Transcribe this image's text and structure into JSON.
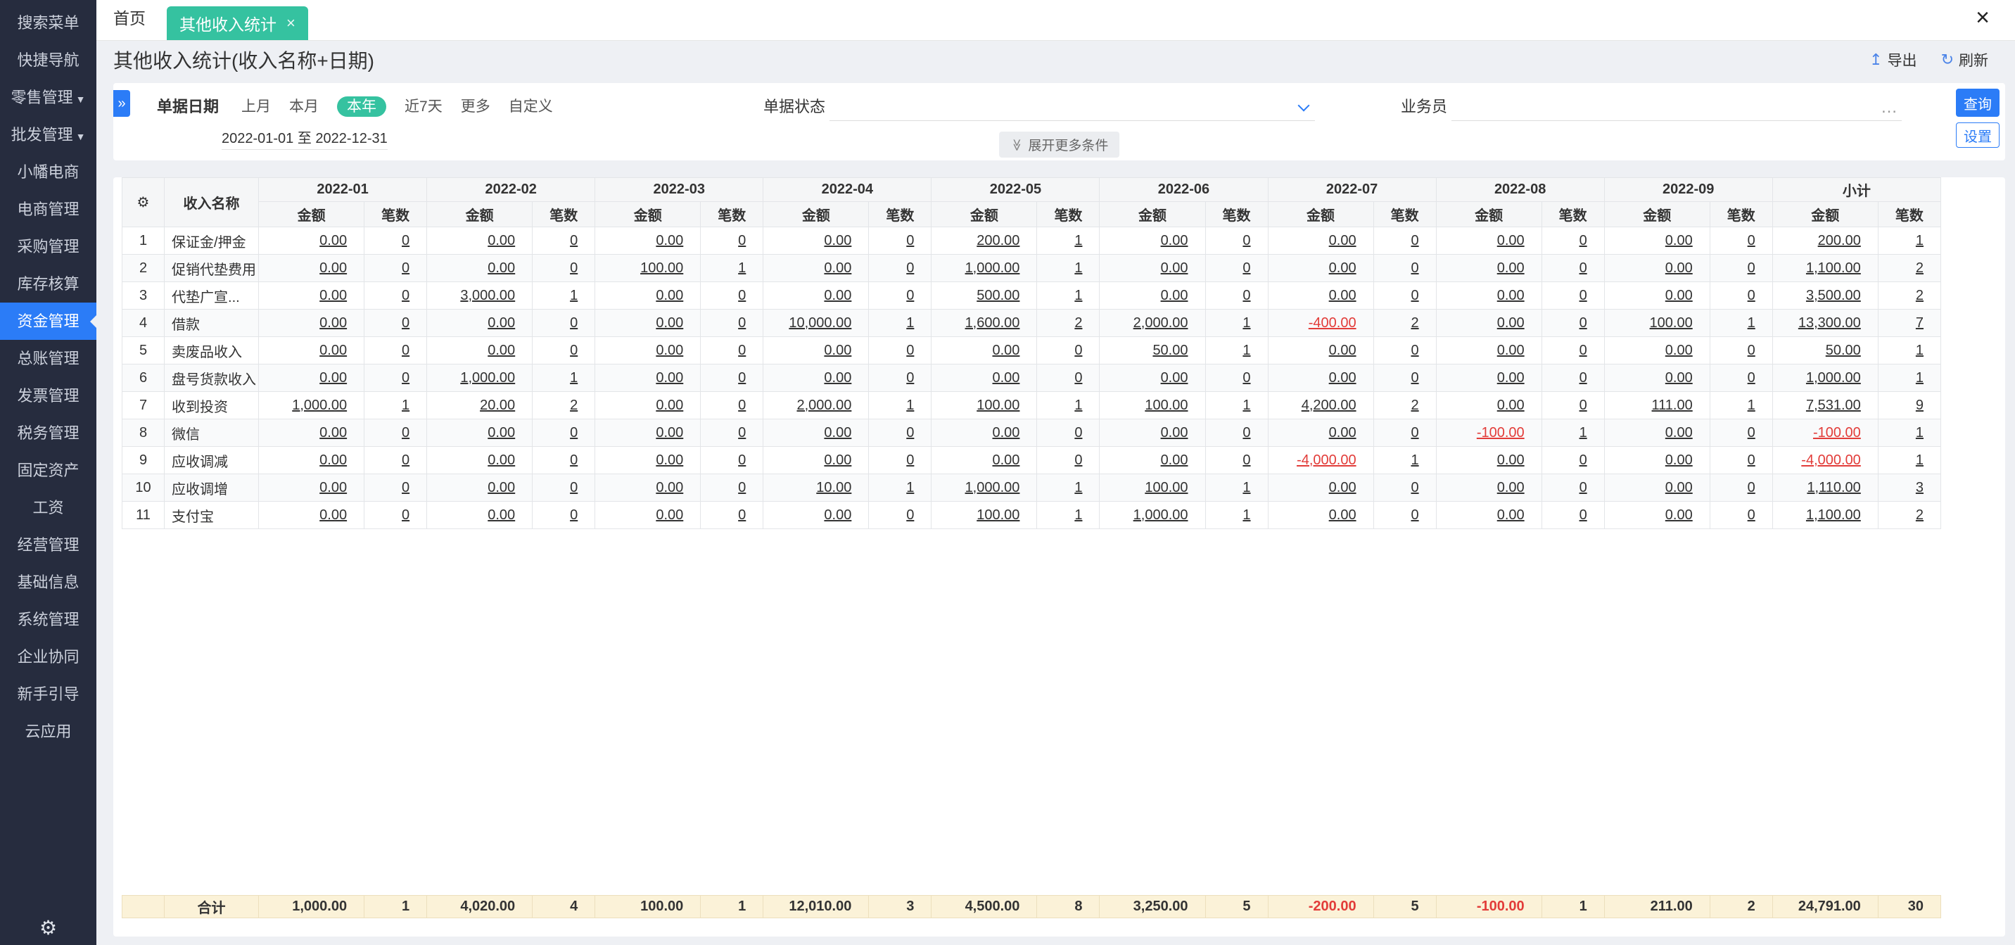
{
  "colors": {
    "accent": "#2b7cf7",
    "tab_green": "#35c2a0",
    "negative": "#e23c39",
    "footer_bg": "#fbf2d8",
    "sidebar_bg": "#262c3e"
  },
  "sidebar": {
    "gear_icon": "⚙",
    "items": [
      {
        "label": "搜索菜单",
        "arrow": false,
        "selected": false
      },
      {
        "label": "快捷导航",
        "arrow": false,
        "selected": false
      },
      {
        "label": "零售管理",
        "arrow": true,
        "selected": false
      },
      {
        "label": "批发管理",
        "arrow": true,
        "selected": false
      },
      {
        "label": "小幡电商",
        "arrow": false,
        "selected": false
      },
      {
        "label": "电商管理",
        "arrow": false,
        "selected": false
      },
      {
        "label": "采购管理",
        "arrow": false,
        "selected": false
      },
      {
        "label": "库存核算",
        "arrow": false,
        "selected": false
      },
      {
        "label": "资金管理",
        "arrow": false,
        "selected": true
      },
      {
        "label": "总账管理",
        "arrow": false,
        "selected": false
      },
      {
        "label": "发票管理",
        "arrow": false,
        "selected": false
      },
      {
        "label": "税务管理",
        "arrow": false,
        "selected": false
      },
      {
        "label": "固定资产",
        "arrow": false,
        "selected": false
      },
      {
        "label": "工资",
        "arrow": false,
        "selected": false
      },
      {
        "label": "经营管理",
        "arrow": false,
        "selected": false
      },
      {
        "label": "基础信息",
        "arrow": false,
        "selected": false
      },
      {
        "label": "系统管理",
        "arrow": false,
        "selected": false
      },
      {
        "label": "企业协同",
        "arrow": false,
        "selected": false
      },
      {
        "label": "新手引导",
        "arrow": false,
        "selected": false
      },
      {
        "label": "云应用",
        "arrow": false,
        "selected": false
      }
    ]
  },
  "tabs": {
    "home": "首页",
    "active": "其他收入统计",
    "close_x": "×",
    "window_close": "×"
  },
  "page": {
    "title": "其他收入统计(收入名称+日期)",
    "export_label": "导出",
    "refresh_label": "刷新",
    "export_icon": "↥",
    "refresh_icon": "↻"
  },
  "filters": {
    "expand_chip": "»",
    "date_label": "单据日期",
    "quick_options": [
      "上月",
      "本月",
      "本年",
      "近7天",
      "更多",
      "自定义"
    ],
    "quick_selected": "本年",
    "date_range": "2022-01-01 至 2022-12-31",
    "status_label": "单据状态",
    "salesman_label": "业务员",
    "dots": "…",
    "query_label": "查询",
    "setting_label": "设置",
    "expand_more_label": "展开更多条件",
    "expand_more_icon": "≫"
  },
  "table": {
    "gear_icon": "⚙",
    "name_header": "收入名称",
    "months": [
      "2022-01",
      "2022-02",
      "2022-03",
      "2022-04",
      "2022-05",
      "2022-06",
      "2022-07",
      "2022-08",
      "2022-09",
      "小计"
    ],
    "sub": [
      "金额",
      "笔数"
    ],
    "rows": [
      {
        "index": "1",
        "name": "保证金/押金",
        "cells": [
          [
            "0.00",
            "0"
          ],
          [
            "0.00",
            "0"
          ],
          [
            "0.00",
            "0"
          ],
          [
            "0.00",
            "0"
          ],
          [
            "200.00",
            "1"
          ],
          [
            "0.00",
            "0"
          ],
          [
            "0.00",
            "0"
          ],
          [
            "0.00",
            "0"
          ],
          [
            "0.00",
            "0"
          ],
          [
            "200.00",
            "1"
          ]
        ]
      },
      {
        "index": "2",
        "name": "促销代垫费用",
        "cells": [
          [
            "0.00",
            "0"
          ],
          [
            "0.00",
            "0"
          ],
          [
            "100.00",
            "1"
          ],
          [
            "0.00",
            "0"
          ],
          [
            "1,000.00",
            "1"
          ],
          [
            "0.00",
            "0"
          ],
          [
            "0.00",
            "0"
          ],
          [
            "0.00",
            "0"
          ],
          [
            "0.00",
            "0"
          ],
          [
            "1,100.00",
            "2"
          ]
        ]
      },
      {
        "index": "3",
        "name": "代垫广宣...",
        "cells": [
          [
            "0.00",
            "0"
          ],
          [
            "3,000.00",
            "1"
          ],
          [
            "0.00",
            "0"
          ],
          [
            "0.00",
            "0"
          ],
          [
            "500.00",
            "1"
          ],
          [
            "0.00",
            "0"
          ],
          [
            "0.00",
            "0"
          ],
          [
            "0.00",
            "0"
          ],
          [
            "0.00",
            "0"
          ],
          [
            "3,500.00",
            "2"
          ]
        ]
      },
      {
        "index": "4",
        "name": "借款",
        "cells": [
          [
            "0.00",
            "0"
          ],
          [
            "0.00",
            "0"
          ],
          [
            "0.00",
            "0"
          ],
          [
            "10,000.00",
            "1"
          ],
          [
            "1,600.00",
            "2"
          ],
          [
            "2,000.00",
            "1"
          ],
          [
            "-400.00",
            "2"
          ],
          [
            "0.00",
            "0"
          ],
          [
            "100.00",
            "1"
          ],
          [
            "13,300.00",
            "7"
          ]
        ]
      },
      {
        "index": "5",
        "name": "卖废品收入",
        "cells": [
          [
            "0.00",
            "0"
          ],
          [
            "0.00",
            "0"
          ],
          [
            "0.00",
            "0"
          ],
          [
            "0.00",
            "0"
          ],
          [
            "0.00",
            "0"
          ],
          [
            "50.00",
            "1"
          ],
          [
            "0.00",
            "0"
          ],
          [
            "0.00",
            "0"
          ],
          [
            "0.00",
            "0"
          ],
          [
            "50.00",
            "1"
          ]
        ]
      },
      {
        "index": "6",
        "name": "盘号货款收入",
        "cells": [
          [
            "0.00",
            "0"
          ],
          [
            "1,000.00",
            "1"
          ],
          [
            "0.00",
            "0"
          ],
          [
            "0.00",
            "0"
          ],
          [
            "0.00",
            "0"
          ],
          [
            "0.00",
            "0"
          ],
          [
            "0.00",
            "0"
          ],
          [
            "0.00",
            "0"
          ],
          [
            "0.00",
            "0"
          ],
          [
            "1,000.00",
            "1"
          ]
        ]
      },
      {
        "index": "7",
        "name": "收到投资",
        "cells": [
          [
            "1,000.00",
            "1"
          ],
          [
            "20.00",
            "2"
          ],
          [
            "0.00",
            "0"
          ],
          [
            "2,000.00",
            "1"
          ],
          [
            "100.00",
            "1"
          ],
          [
            "100.00",
            "1"
          ],
          [
            "4,200.00",
            "2"
          ],
          [
            "0.00",
            "0"
          ],
          [
            "111.00",
            "1"
          ],
          [
            "7,531.00",
            "9"
          ]
        ]
      },
      {
        "index": "8",
        "name": "微信",
        "cells": [
          [
            "0.00",
            "0"
          ],
          [
            "0.00",
            "0"
          ],
          [
            "0.00",
            "0"
          ],
          [
            "0.00",
            "0"
          ],
          [
            "0.00",
            "0"
          ],
          [
            "0.00",
            "0"
          ],
          [
            "0.00",
            "0"
          ],
          [
            "-100.00",
            "1"
          ],
          [
            "0.00",
            "0"
          ],
          [
            "-100.00",
            "1"
          ]
        ]
      },
      {
        "index": "9",
        "name": "应收调减",
        "cells": [
          [
            "0.00",
            "0"
          ],
          [
            "0.00",
            "0"
          ],
          [
            "0.00",
            "0"
          ],
          [
            "0.00",
            "0"
          ],
          [
            "0.00",
            "0"
          ],
          [
            "0.00",
            "0"
          ],
          [
            "-4,000.00",
            "1"
          ],
          [
            "0.00",
            "0"
          ],
          [
            "0.00",
            "0"
          ],
          [
            "-4,000.00",
            "1"
          ]
        ]
      },
      {
        "index": "10",
        "name": "应收调增",
        "cells": [
          [
            "0.00",
            "0"
          ],
          [
            "0.00",
            "0"
          ],
          [
            "0.00",
            "0"
          ],
          [
            "10.00",
            "1"
          ],
          [
            "1,000.00",
            "1"
          ],
          [
            "100.00",
            "1"
          ],
          [
            "0.00",
            "0"
          ],
          [
            "0.00",
            "0"
          ],
          [
            "0.00",
            "0"
          ],
          [
            "1,110.00",
            "3"
          ]
        ]
      },
      {
        "index": "11",
        "name": "支付宝",
        "cells": [
          [
            "0.00",
            "0"
          ],
          [
            "0.00",
            "0"
          ],
          [
            "0.00",
            "0"
          ],
          [
            "0.00",
            "0"
          ],
          [
            "100.00",
            "1"
          ],
          [
            "1,000.00",
            "1"
          ],
          [
            "0.00",
            "0"
          ],
          [
            "0.00",
            "0"
          ],
          [
            "0.00",
            "0"
          ],
          [
            "1,100.00",
            "2"
          ]
        ]
      }
    ],
    "footer": {
      "label": "合计",
      "cells": [
        [
          "1,000.00",
          "1"
        ],
        [
          "4,020.00",
          "4"
        ],
        [
          "100.00",
          "1"
        ],
        [
          "12,010.00",
          "3"
        ],
        [
          "4,500.00",
          "8"
        ],
        [
          "3,250.00",
          "5"
        ],
        [
          "-200.00",
          "5"
        ],
        [
          "-100.00",
          "1"
        ],
        [
          "211.00",
          "2"
        ],
        [
          "24,791.00",
          "30"
        ]
      ]
    }
  }
}
